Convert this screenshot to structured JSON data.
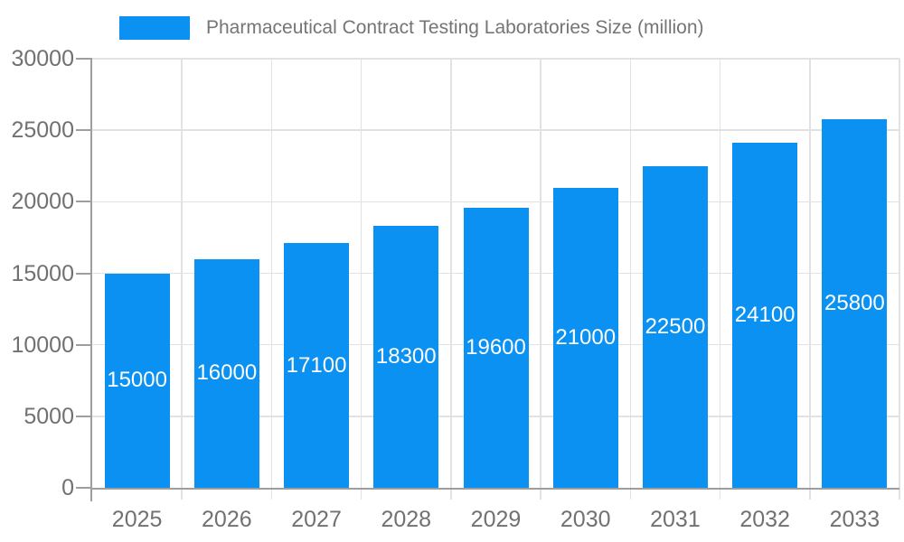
{
  "chart_data": {
    "type": "bar",
    "title": "Pharmaceutical Contract Testing Laboratories Size (million)",
    "categories": [
      "2025",
      "2026",
      "2027",
      "2028",
      "2029",
      "2030",
      "2031",
      "2032",
      "2033"
    ],
    "series": [
      {
        "name": "Pharmaceutical Contract Testing Laboratories Size (million)",
        "values": [
          15000,
          16000,
          17100,
          18300,
          19600,
          21000,
          22500,
          24100,
          25800
        ]
      }
    ],
    "value_labels": [
      "15000",
      "16000",
      "17100",
      "18300",
      "19600",
      "21000",
      "22500",
      "24100",
      "25800"
    ],
    "xlabel": "",
    "ylabel": "",
    "ylim": [
      0,
      30000
    ],
    "yticks": [
      0,
      5000,
      10000,
      15000,
      20000,
      25000,
      30000
    ],
    "ytick_labels": [
      "0",
      "5000",
      "10000",
      "15000",
      "20000",
      "25000",
      "30000"
    ],
    "grid": "both",
    "legend_position": "top",
    "value_label_position": "inside-center",
    "colors": {
      "bar": "#0a91f2",
      "value_label": "#ffffff",
      "axis_text": "#717171",
      "title_text": "#757575",
      "gridline": "#e2e2e2",
      "axis_line": "#9e9e9e"
    }
  }
}
